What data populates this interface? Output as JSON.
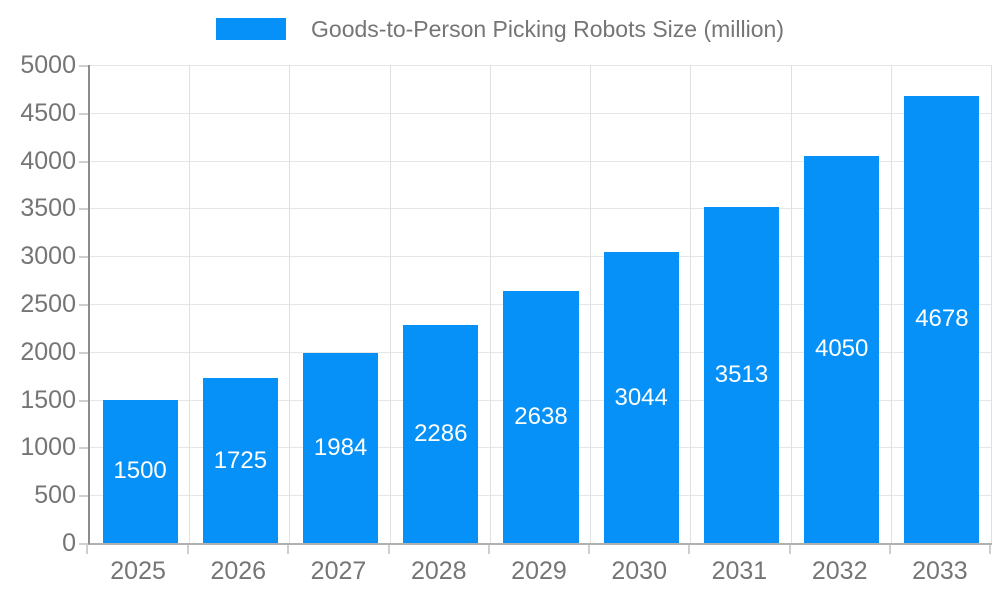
{
  "legend": {
    "label": "Goods-to-Person Picking Robots Size (million)"
  },
  "colors": {
    "bar": "#0591f7",
    "value_label": "#ffffff",
    "axis_text": "#757575",
    "gridline": "#e6e6e6",
    "y_axis_line": "#8c8c8c",
    "x_axis_line": "#b0b0b0",
    "background": "#ffffff"
  },
  "chart_data": {
    "type": "bar",
    "title": "Goods-to-Person Picking Robots Size (million)",
    "categories": [
      "2025",
      "2026",
      "2027",
      "2028",
      "2029",
      "2030",
      "2031",
      "2032",
      "2033"
    ],
    "values": [
      1500,
      1725,
      1984,
      2286,
      2638,
      3044,
      3513,
      4050,
      4678
    ],
    "value_labels": [
      "1500",
      "1725",
      "1984",
      "2286",
      "2638",
      "3044",
      "3513",
      "4050",
      "4678"
    ],
    "xlabel": "",
    "ylabel": "",
    "ylim": [
      0,
      5000
    ],
    "ytick_step": 500,
    "ytick_labels": [
      "0",
      "500",
      "1000",
      "1500",
      "2000",
      "2500",
      "3000",
      "3500",
      "4000",
      "4500",
      "5000"
    ],
    "grid": true,
    "legend_position": "top",
    "value_label_position": "inside-center",
    "bar_color": "#0591f7"
  }
}
